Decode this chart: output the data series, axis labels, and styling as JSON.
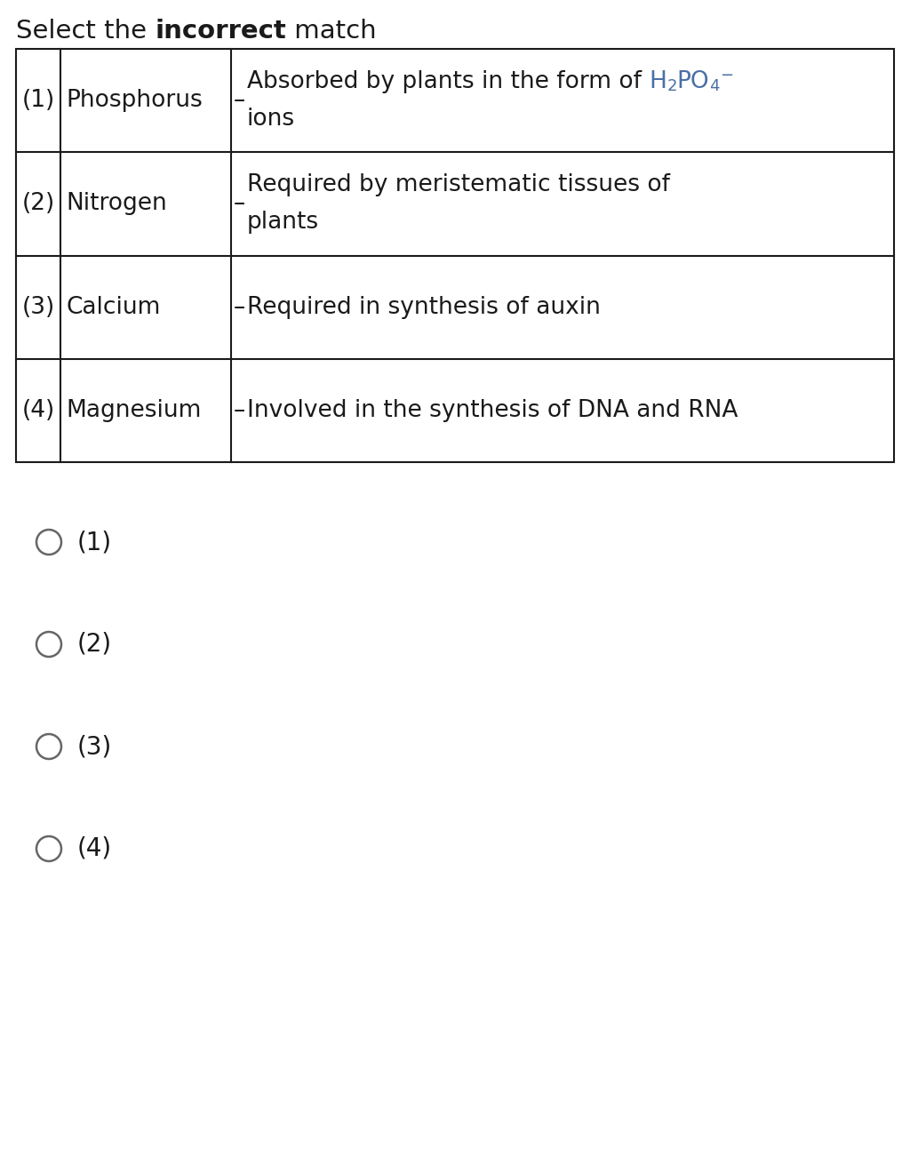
{
  "bg_color": "#ffffff",
  "text_color": "#1a1a1a",
  "formula_color": "#4a6fa5",
  "font_size": 19,
  "title_font_size": 21,
  "table_rows": [
    {
      "num": "(1)",
      "element": "Phosphorus",
      "description_line1": "Absorbed by plants in the form of ",
      "description_formula": true,
      "description_line2": "ions"
    },
    {
      "num": "(2)",
      "element": "Nitrogen",
      "description_line1": "Required by meristematic tissues of",
      "description_formula": false,
      "description_line2": "plants"
    },
    {
      "num": "(3)",
      "element": "Calcium",
      "description_line1": "Required in synthesis of auxin",
      "description_formula": false,
      "description_line2": ""
    },
    {
      "num": "(4)",
      "element": "Magnesium",
      "description_line1": "Involved in the synthesis of DNA and RNA",
      "description_formula": false,
      "description_line2": ""
    }
  ],
  "options": [
    "(1)",
    "(2)",
    "(3)",
    "(4)"
  ],
  "line_color": "#1a1a1a",
  "line_width": 1.5
}
